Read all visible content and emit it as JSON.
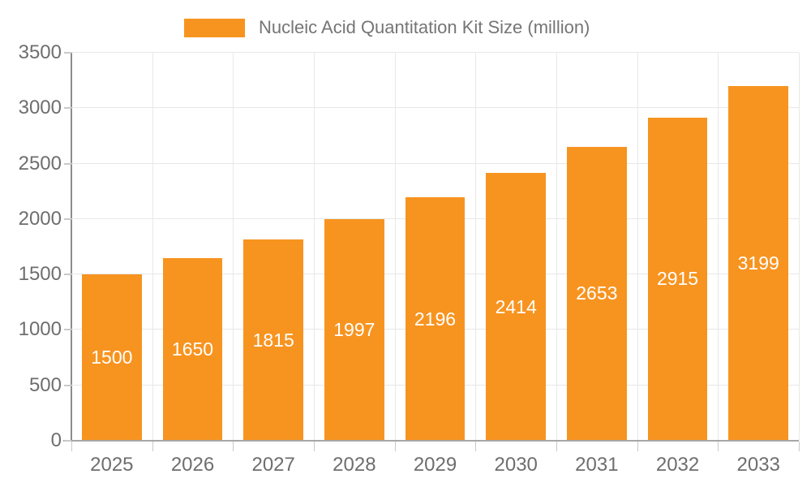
{
  "legend": {
    "label": "Nucleic Acid Quantitation Kit Size (million)"
  },
  "chart_data": {
    "type": "bar",
    "title": "Nucleic Acid Quantitation Kit Size (million)",
    "categories": [
      "2025",
      "2026",
      "2027",
      "2028",
      "2029",
      "2030",
      "2031",
      "2032",
      "2033"
    ],
    "values": [
      1500,
      1650,
      1815,
      1997,
      2196,
      2414,
      2653,
      2915,
      3199
    ],
    "xlabel": "",
    "ylabel": "",
    "ylim": [
      0,
      3500
    ],
    "yticks": [
      0,
      500,
      1000,
      1500,
      2000,
      2500,
      3000,
      3500
    ],
    "grid": true,
    "legend_position": "top",
    "bar_color": "#f79420",
    "value_label_color": "#ffffff",
    "axis_label_color": "#6e6e6e",
    "gridline_color": "#e8e8e8"
  }
}
